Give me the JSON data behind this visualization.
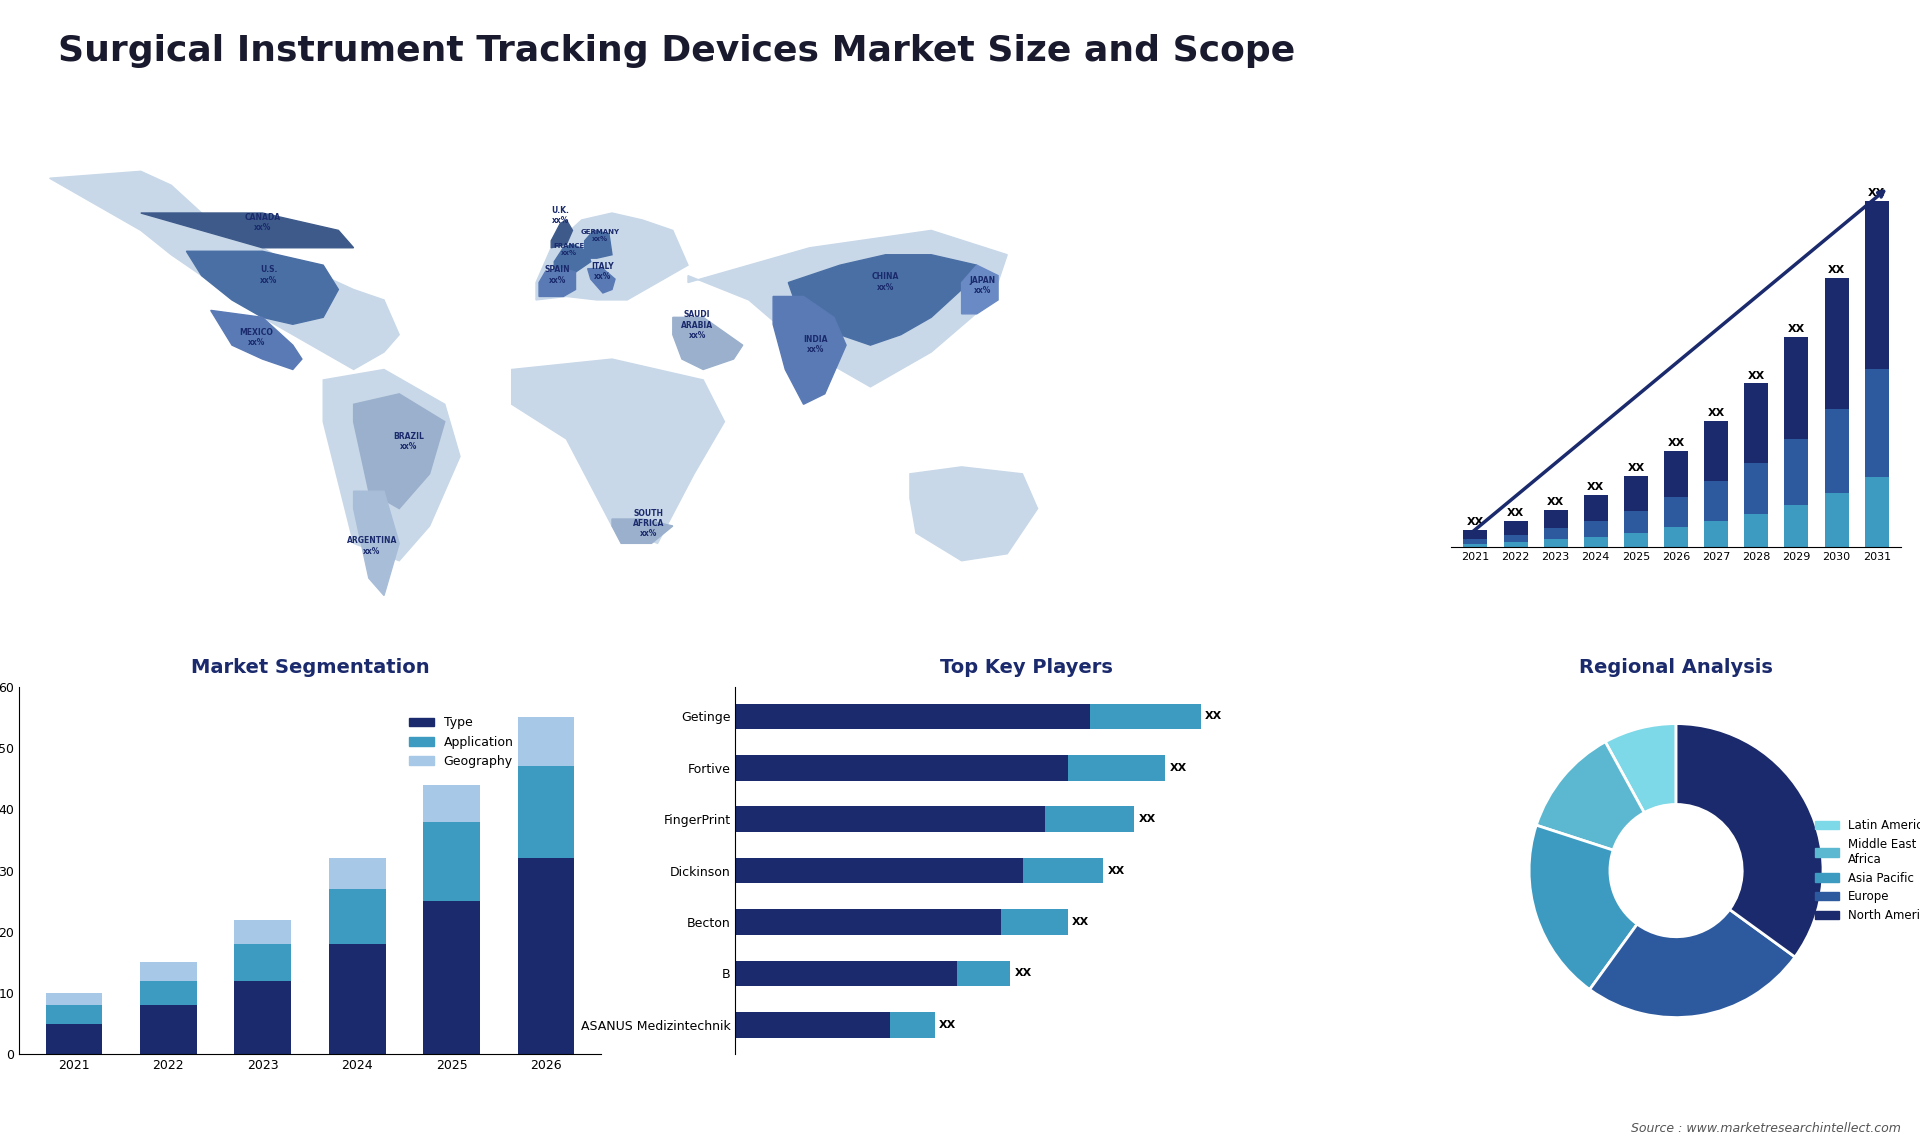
{
  "title": "Surgical Instrument Tracking Devices Market Size and Scope",
  "title_color": "#1a1a2e",
  "background_color": "#ffffff",
  "bar_chart_years": [
    "2021",
    "2022",
    "2023",
    "2024",
    "2025",
    "2026",
    "2027",
    "2028",
    "2029",
    "2030",
    "2031"
  ],
  "bar_chart_seg1": [
    1,
    1.5,
    2,
    2.8,
    3.8,
    5,
    6.5,
    8.5,
    11,
    14,
    18
  ],
  "bar_chart_seg2": [
    0.5,
    0.8,
    1.2,
    1.7,
    2.3,
    3.2,
    4.2,
    5.5,
    7,
    9,
    11.5
  ],
  "bar_chart_seg3": [
    0.3,
    0.5,
    0.8,
    1.1,
    1.5,
    2.1,
    2.8,
    3.5,
    4.5,
    5.8,
    7.5
  ],
  "bar_colors": [
    "#1a2a6c",
    "#2d5a9e",
    "#3d9bc1"
  ],
  "seg_years": [
    "2021",
    "2022",
    "2023",
    "2024",
    "2025",
    "2026"
  ],
  "seg_type": [
    5,
    8,
    12,
    18,
    25,
    32
  ],
  "seg_application": [
    8,
    12,
    18,
    27,
    38,
    47
  ],
  "seg_geography": [
    10,
    15,
    22,
    32,
    44,
    55
  ],
  "seg_colors": [
    "#1a2a6c",
    "#3d9bc1",
    "#a8c8e8"
  ],
  "seg_ylabel_max": 60,
  "seg_title": "Market Segmentation",
  "seg_legend": [
    "Type",
    "Application",
    "Geography"
  ],
  "players": [
    "ASANUS Medizintechnik",
    "B",
    "Becton",
    "Dickinson",
    "FingerPrint",
    "Fortive",
    "Getinge"
  ],
  "players_val1": [
    3.5,
    5,
    6,
    6.5,
    7,
    7.5,
    8
  ],
  "players_val2": [
    1,
    1.2,
    1.5,
    1.8,
    2,
    2.2,
    2.5
  ],
  "players_colors": [
    "#1a2a6c",
    "#3d9bc1"
  ],
  "players_title": "Top Key Players",
  "pie_labels": [
    "Latin America",
    "Middle East &\nAfrica",
    "Asia Pacific",
    "Europe",
    "North America"
  ],
  "pie_values": [
    8,
    12,
    20,
    25,
    35
  ],
  "pie_colors": [
    "#7dd8e8",
    "#5cb8d0",
    "#3d9bc1",
    "#2d5a9e",
    "#1a2a6c"
  ],
  "pie_title": "Regional Analysis",
  "source_text": "Source : www.marketresearchintellect.com"
}
